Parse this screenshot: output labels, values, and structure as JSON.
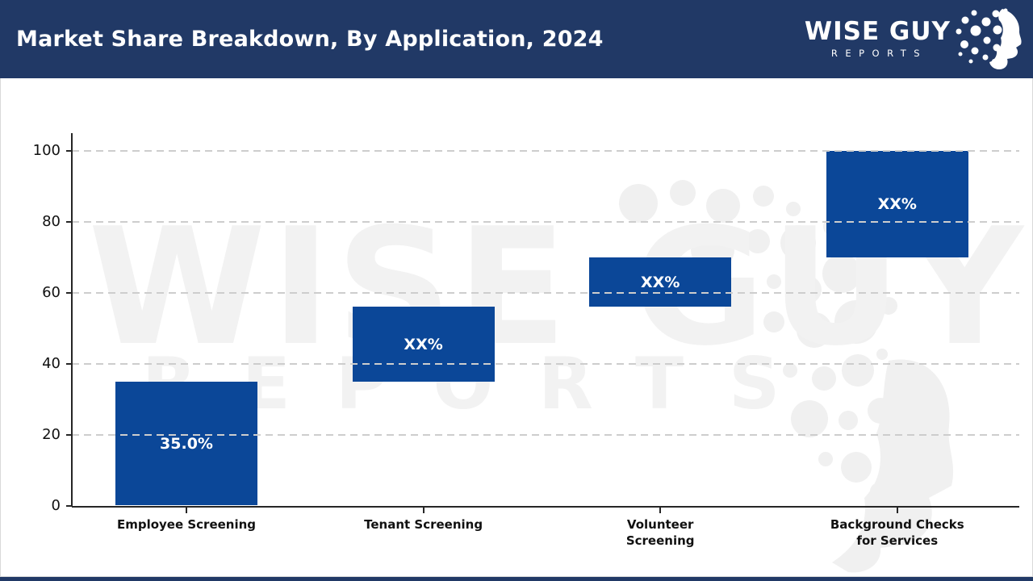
{
  "header": {
    "title": "Market Share Breakdown, By Application, 2024",
    "logo": {
      "name": "WISE GUY",
      "tagline": "REPORTS"
    }
  },
  "watermark": {
    "line1": "WISE GUY",
    "line2": "REPORTS"
  },
  "chart_data": {
    "type": "bar",
    "subtype": "waterfall",
    "title": "Market Share Breakdown, By Application, 2024",
    "categories": [
      "Employee Screening",
      "Tenant Screening",
      "Volunteer Screening",
      "Background Checks for Services"
    ],
    "category_display_lines": [
      [
        "Employee Screening"
      ],
      [
        "Tenant Screening"
      ],
      [
        "Volunteer",
        "Screening"
      ],
      [
        "Background Checks",
        "for Services"
      ]
    ],
    "segments": [
      {
        "category": "Employee Screening",
        "start": 0,
        "end": 35,
        "value": 35.0,
        "label": "35.0%"
      },
      {
        "category": "Tenant Screening",
        "start": 35,
        "end": 56,
        "value": 21.0,
        "label": "XX%"
      },
      {
        "category": "Volunteer Screening",
        "start": 56,
        "end": 70,
        "value": 14.0,
        "label": "XX%"
      },
      {
        "category": "Background Checks for Services",
        "start": 70,
        "end": 100,
        "value": 30.0,
        "label": "XX%"
      }
    ],
    "yticks": [
      0,
      20,
      40,
      60,
      80,
      100
    ],
    "ylim": [
      0,
      105
    ],
    "xlabel": "",
    "ylabel": "",
    "grid": "horizontal-dashed",
    "legend": "none",
    "bar_color": "#0b4798",
    "bar_label_color": "#ffffff",
    "grid_color": "#cdcdcd",
    "axis_color": "#262626",
    "header_color": "#213966",
    "watermark_color": "#f2f2f2"
  }
}
